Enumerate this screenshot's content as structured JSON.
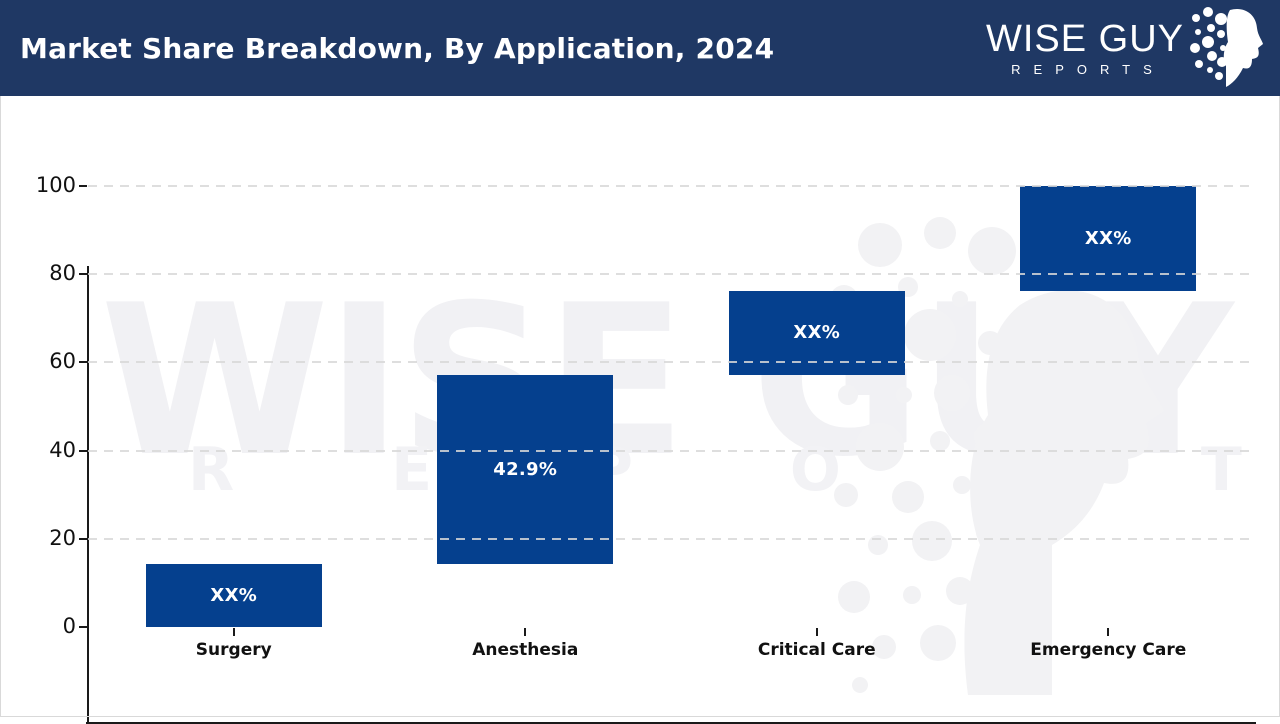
{
  "header": {
    "title": "Market Share Breakdown, By Application, 2024",
    "logo": {
      "line1": "WISE GUY",
      "line2": "REPORTS",
      "icon": "dotted-face-profile"
    }
  },
  "watermark": {
    "line1": "WISE GUY",
    "line2": "R E P O R T S"
  },
  "chart_data": {
    "type": "bar",
    "subtype": "waterfall-floating-bars",
    "title": "Market Share Breakdown, By Application, 2024",
    "xlabel": "",
    "ylabel": "",
    "categories": [
      "Surgery",
      "Anesthesia",
      "Critical Care",
      "Emergency Care"
    ],
    "segments": [
      {
        "category": "Surgery",
        "start": 0,
        "end": 14.3,
        "value": 14.3,
        "label": "XX%"
      },
      {
        "category": "Anesthesia",
        "start": 14.3,
        "end": 57.2,
        "value": 42.9,
        "label": "42.9%"
      },
      {
        "category": "Critical Care",
        "start": 57.2,
        "end": 76.2,
        "value": 19.0,
        "label": "XX%"
      },
      {
        "category": "Emergency Care",
        "start": 76.2,
        "end": 100,
        "value": 23.8,
        "label": "XX%"
      }
    ],
    "yticks": [
      0,
      20,
      40,
      60,
      80,
      100
    ],
    "ylim": [
      0,
      100
    ],
    "grid": "dashed-horizontal",
    "legend": "none",
    "bar_color": "#05408e",
    "bar_label_color": "#ffffff",
    "axis_color": "#1a1a1a",
    "grid_color": "#d8d8d8"
  },
  "colors": {
    "header_bg": "#1f3864",
    "header_text": "#ffffff",
    "watermark": "#f1f1f4",
    "frame_border": "#d9d9d9",
    "background": "#ffffff"
  }
}
